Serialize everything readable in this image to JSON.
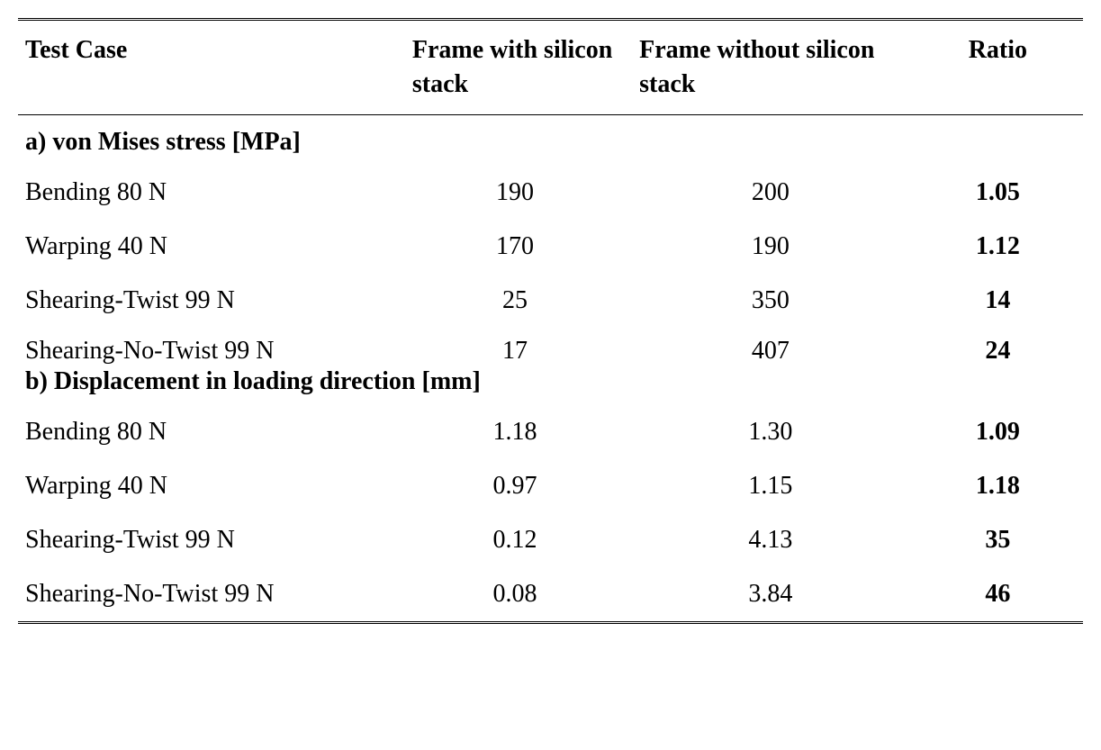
{
  "table": {
    "type": "table",
    "background_color": "#ffffff",
    "text_color": "#000000",
    "border_color": "#000000",
    "font_family": "Georgia, 'Times New Roman', serif",
    "header_fontsize": 28,
    "body_fontsize": 28,
    "columns": [
      {
        "label": "Test Case",
        "align": "left",
        "width_pct": 36
      },
      {
        "label": "Frame with silicon stack",
        "align": "center",
        "width_pct": 22
      },
      {
        "label": "Frame without silicon stack",
        "align": "center",
        "width_pct": 26
      },
      {
        "label": "Ratio",
        "align": "center",
        "width_pct": 16,
        "bold": true
      }
    ],
    "sections": [
      {
        "title": "a) von Mises stress [MPa]",
        "rows": [
          {
            "test_case": "Bending 80 N",
            "with_stack": "190",
            "without_stack": "200",
            "ratio": "1.05"
          },
          {
            "test_case": "Warping 40 N",
            "with_stack": "170",
            "without_stack": "190",
            "ratio": "1.12"
          },
          {
            "test_case": "Shearing-Twist 99 N",
            "with_stack": "25",
            "without_stack": "350",
            "ratio": "14"
          },
          {
            "test_case": "Shearing-No-Twist 99 N",
            "with_stack": "17",
            "without_stack": "407",
            "ratio": "24"
          }
        ]
      },
      {
        "title": "b) Displacement in loading direction [mm]",
        "rows": [
          {
            "test_case": "Bending 80 N",
            "with_stack": "1.18",
            "without_stack": "1.30",
            "ratio": "1.09"
          },
          {
            "test_case": "Warping 40 N",
            "with_stack": "0.97",
            "without_stack": "1.15",
            "ratio": "1.18"
          },
          {
            "test_case": "Shearing-Twist 99 N",
            "with_stack": "0.12",
            "without_stack": "4.13",
            "ratio": "35"
          },
          {
            "test_case": "Shearing-No-Twist 99 N",
            "with_stack": "0.08",
            "without_stack": "3.84",
            "ratio": "46"
          }
        ]
      }
    ]
  }
}
